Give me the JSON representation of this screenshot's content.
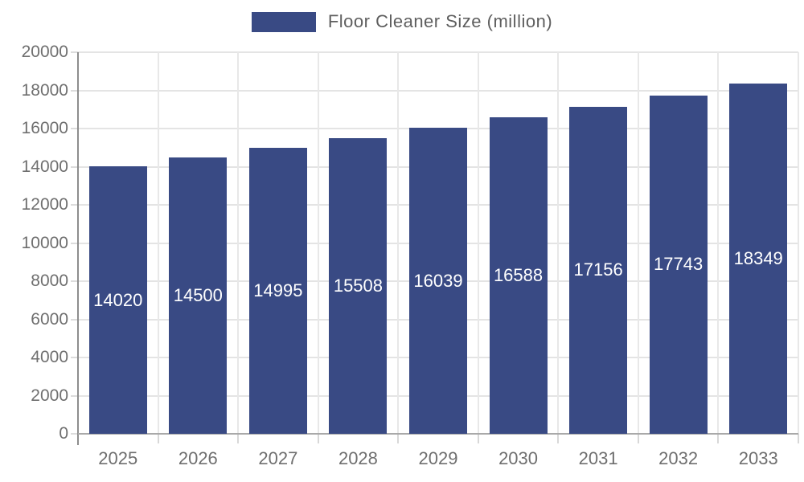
{
  "legend": {
    "label": "Floor Cleaner Size (million)"
  },
  "colors": {
    "bar": "#394a84",
    "bar_label": "#ffffff",
    "grid": "#e4e4e4",
    "grid_vertical": "#e8e8e8",
    "y_axis_line": "#8d8d8d",
    "x_axis_line": "#a9a9a9",
    "axis_text": "#6f6f6f",
    "legend_text": "#5e5e5e"
  },
  "chart_data": {
    "type": "bar",
    "title": "Floor Cleaner Size (million)",
    "categories": [
      "2025",
      "2026",
      "2027",
      "2028",
      "2029",
      "2030",
      "2031",
      "2032",
      "2033"
    ],
    "values": [
      14020,
      14500,
      14995,
      15508,
      16039,
      16588,
      17156,
      17743,
      18349
    ],
    "xlabel": "",
    "ylabel": "",
    "ylim": [
      0,
      20000
    ],
    "ytick_step": 2000,
    "ytick_labels": [
      "0",
      "2000",
      "4000",
      "6000",
      "8000",
      "10000",
      "12000",
      "14000",
      "16000",
      "18000",
      "20000"
    ],
    "grid": true,
    "legend_position": "top",
    "bar_labels_inside": true
  }
}
